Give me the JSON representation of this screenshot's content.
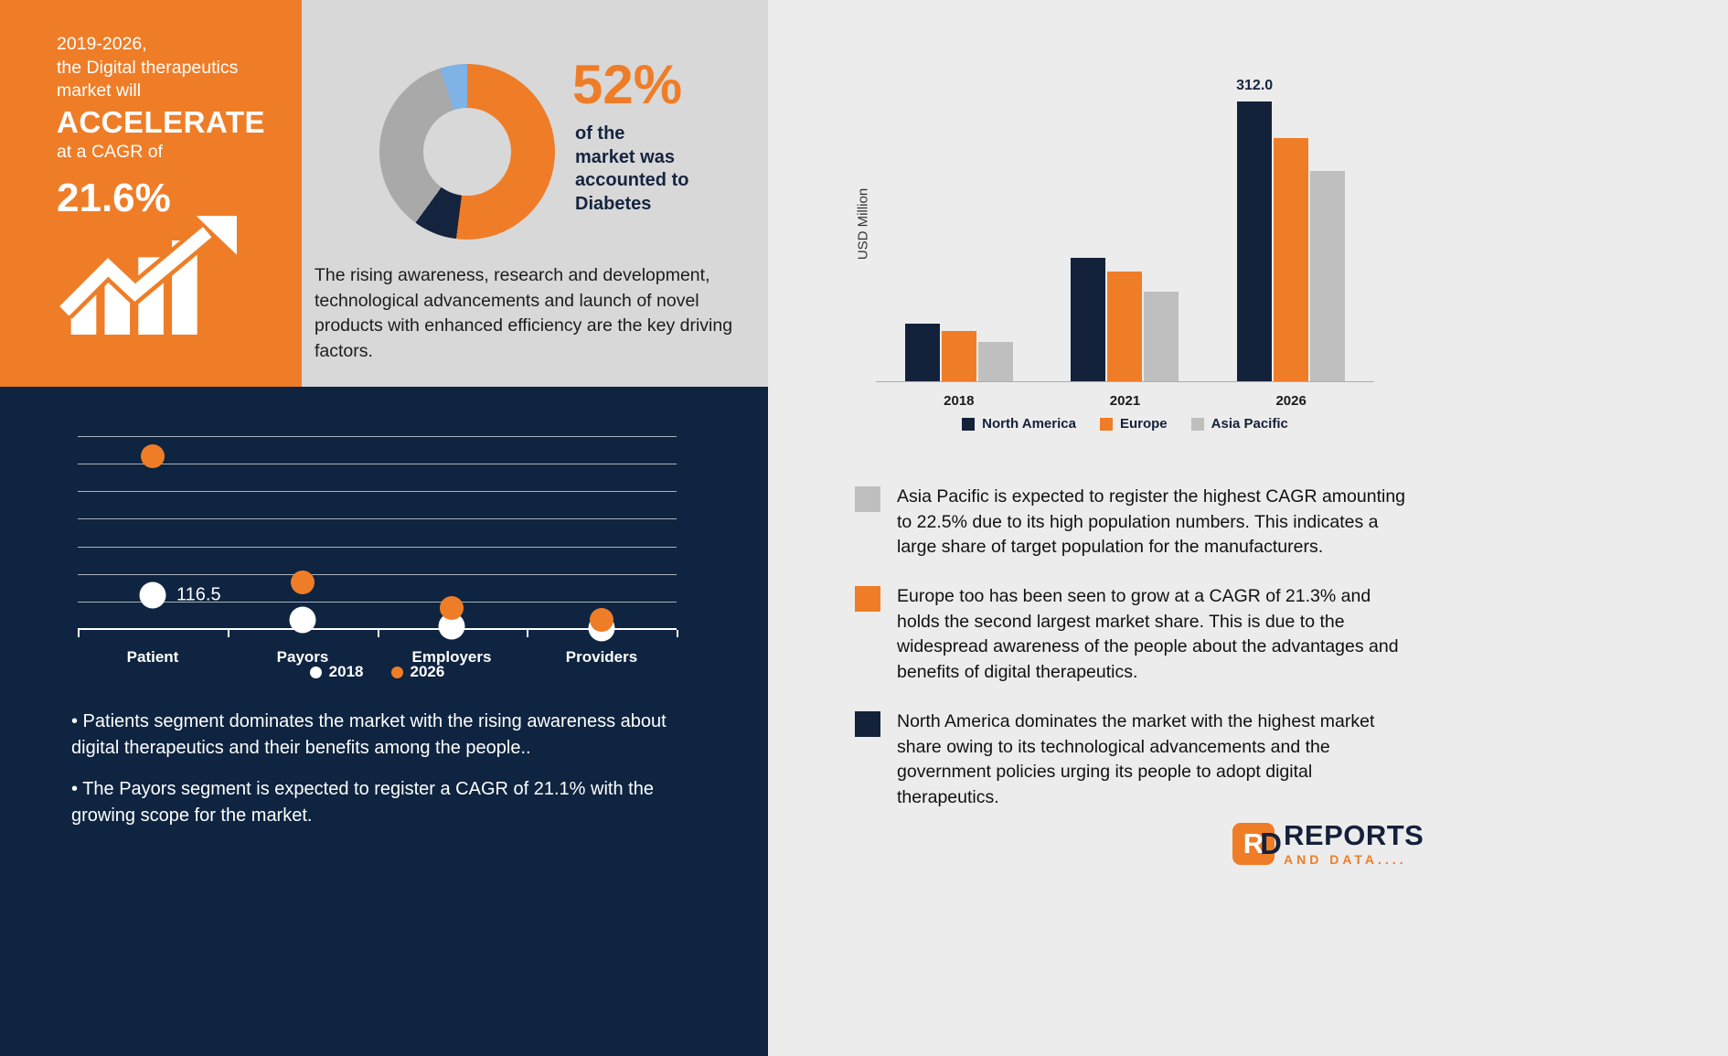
{
  "colors": {
    "orange": "#EF7D27",
    "navy": "#0E2440",
    "navy_dark": "#14213A",
    "panel_gray": "#D8D8D8",
    "right_bg": "#ECECEC",
    "bar_gray": "#BFBFBF",
    "light_blue": "#7FB2E5",
    "white": "#FFFFFF"
  },
  "orange_panel": {
    "intro": "2019-2026,\nthe Digital therapeutics\nmarket will",
    "accelerate": "ACCELERATE",
    "cagr_label": "at a CAGR of",
    "cagr_value": "21.6%"
  },
  "donut_panel": {
    "percent": "52%",
    "caption": "of the\nmarket was\naccounted to\nDiabetes",
    "paragraph": "The rising awareness, research and development, technological advancements and launch of novel products with enhanced efficiency are the key driving factors."
  },
  "segment_panel": {
    "bullets": [
      "• Patients segment dominates the market with the rising awareness about digital therapeutics and their benefits among the people..",
      "• The Payors segment is expected to register a CAGR of 21.1% with the growing scope for the market."
    ]
  },
  "region_panel": {
    "bullets": [
      {
        "color": "#BFBFBF",
        "text": "Asia Pacific is expected to register the highest CAGR amounting to 22.5% due to its high population numbers. This indicates a large share of target population for the manufacturers."
      },
      {
        "color": "#EF7D27",
        "text": "Europe too has been seen to grow at a CAGR of 21.3% and holds the second largest market share. This is due to the widespread awareness of the people about the advantages and benefits of digital therapeutics."
      },
      {
        "color": "#14213A",
        "text": "North America dominates the market with the highest market share owing to its technological advancements and the government policies urging its people to adopt digital therapeutics."
      }
    ]
  },
  "logo": {
    "icon_r": "R",
    "icon_d": "D",
    "reports": "REPORTS",
    "and_data": "AND DATA...."
  },
  "chart_data": [
    {
      "type": "pie",
      "title": "Digital therapeutics market share by application",
      "segments": [
        {
          "label": "Diabetes",
          "value": 52,
          "color": "#EF7D27"
        },
        {
          "label": "Dark segment (unlabeled)",
          "value": 8,
          "color": "#14243E"
        },
        {
          "label": "Gray segment (unlabeled)",
          "value": 35,
          "color": "#A9A9A9"
        },
        {
          "label": "Blue segment (unlabeled)",
          "value": 5,
          "color": "#7FB2E5"
        }
      ],
      "annotation": "52% of the market was accounted to Diabetes",
      "hole": true
    },
    {
      "type": "bar",
      "categories": [
        "2018",
        "2021",
        "2026"
      ],
      "series": [
        {
          "name": "North America",
          "color": "#14213A",
          "values": [
            64,
            138,
            312
          ]
        },
        {
          "name": "Europe",
          "color": "#EF7D27",
          "values": [
            56,
            123,
            272
          ]
        },
        {
          "name": "Asia Pacific",
          "color": "#BFBFBF",
          "values": [
            44,
            100,
            235
          ]
        }
      ],
      "ylabel": "USD Million",
      "ylim": [
        0,
        340
      ],
      "grid": false,
      "legend_position": "bottom",
      "data_labels": [
        {
          "series": "North America",
          "category": "2026",
          "text": "312.0"
        }
      ]
    },
    {
      "type": "scatter",
      "categories": [
        "Patient",
        "Payors",
        "Employers",
        "Providers"
      ],
      "series": [
        {
          "name": "2018",
          "color": "#FFFFFF",
          "values": [
            116.5,
            34,
            12,
            5
          ]
        },
        {
          "name": "2026",
          "color": "#EF7D27",
          "values": [
            585,
            160,
            75,
            34
          ]
        }
      ],
      "ylim": [
        0,
        650
      ],
      "gridlines": 7,
      "grid": true,
      "legend_position": "bottom",
      "data_labels": [
        {
          "series": "2018",
          "category": "Patient",
          "text": "116.5"
        }
      ]
    }
  ]
}
